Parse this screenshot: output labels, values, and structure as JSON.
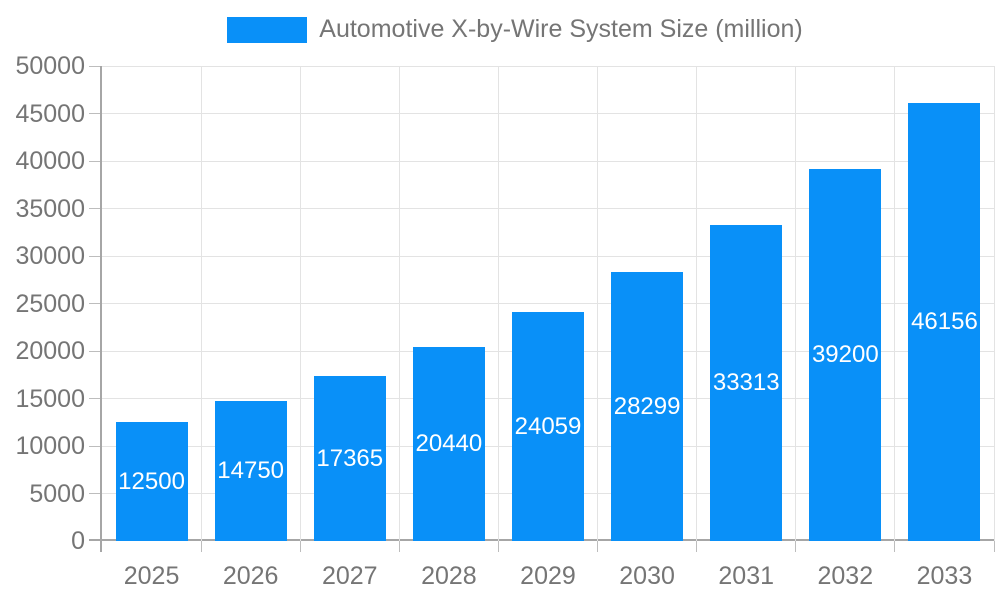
{
  "legend": {
    "label": "Automotive X-by-Wire System Size (million)"
  },
  "colors": {
    "bar": "#0990f8",
    "grid": "#e3e3e3",
    "axis": "#a6a6a6",
    "tick": "#bdbdbd",
    "text": "#757575",
    "value_label": "#ffffff",
    "background": "#ffffff"
  },
  "chart_data": {
    "type": "bar",
    "title": "Automotive X-by-Wire System Size (million)",
    "categories": [
      "2025",
      "2026",
      "2027",
      "2028",
      "2029",
      "2030",
      "2031",
      "2032",
      "2033"
    ],
    "values": [
      12500,
      14750,
      17365,
      20440,
      24059,
      28299,
      33313,
      39200,
      46156
    ],
    "xlabel": "",
    "ylabel": "",
    "ylim": [
      0,
      50000
    ],
    "yticks": [
      0,
      5000,
      10000,
      15000,
      20000,
      25000,
      30000,
      35000,
      40000,
      45000,
      50000
    ],
    "grid": true,
    "legend_position": "top",
    "bar_labels_inside": true
  }
}
